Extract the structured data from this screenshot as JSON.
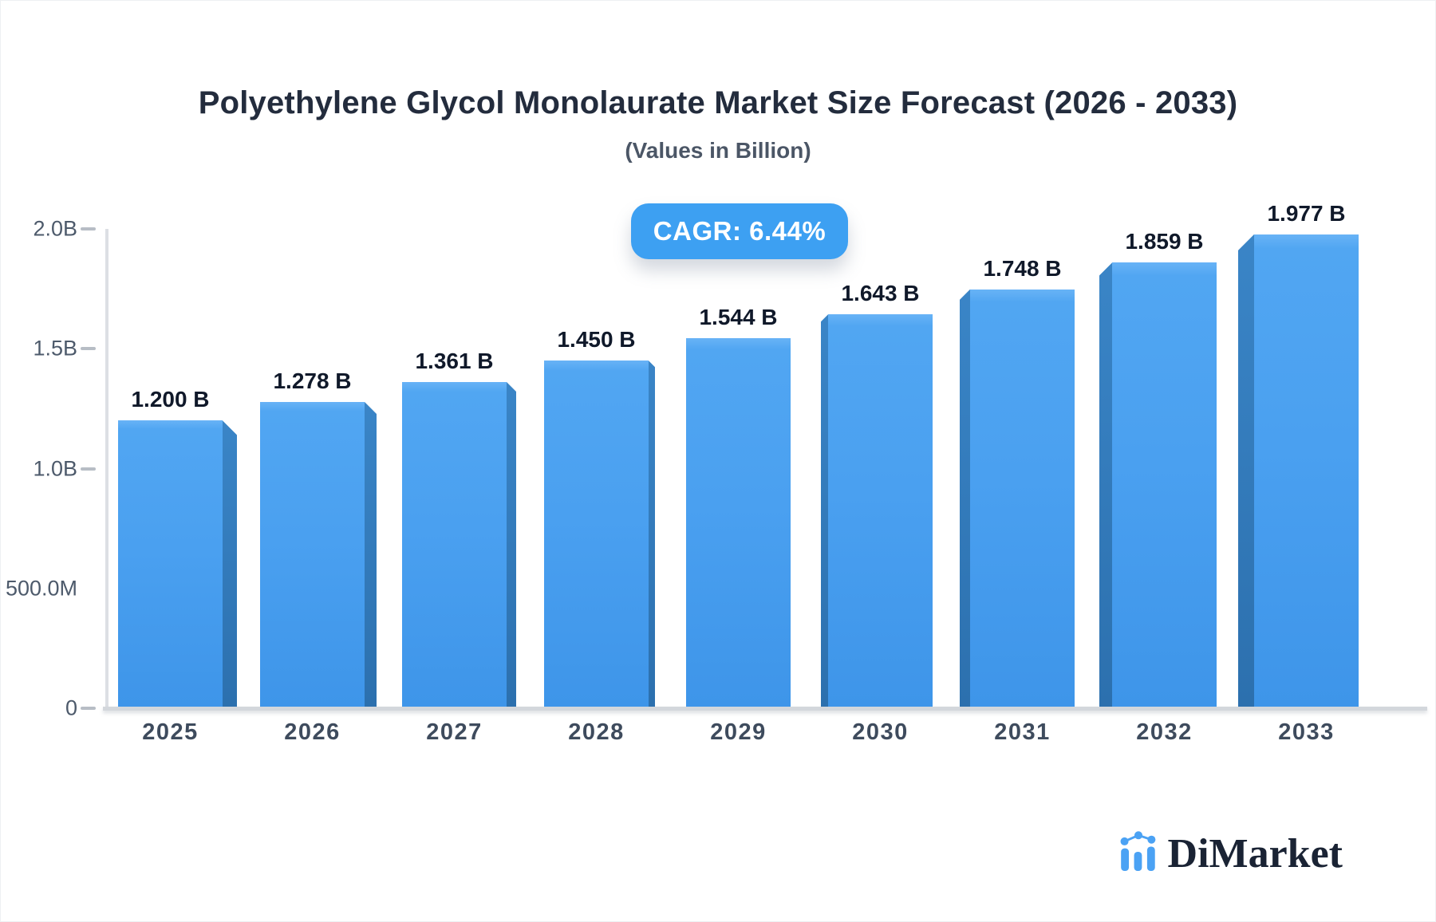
{
  "header": {
    "title": "Polyethylene Glycol Monolaurate Market Size Forecast (2026 - 2033)",
    "subtitle": "(Values in Billion)",
    "cagr_badge": "CAGR: 6.44%"
  },
  "chart_data": {
    "type": "bar",
    "title": "Polyethylene Glycol Monolaurate Market Size Forecast (2026 - 2033)",
    "subtitle": "(Values in Billion)",
    "cagr_text": "CAGR: 6.44%",
    "categories": [
      "2025",
      "2026",
      "2027",
      "2028",
      "2029",
      "2030",
      "2031",
      "2032",
      "2033"
    ],
    "values": [
      1.2,
      1.278,
      1.361,
      1.45,
      1.544,
      1.643,
      1.748,
      1.859,
      1.977
    ],
    "bar_labels": [
      "1.200 B",
      "1.278 B",
      "1.361 B",
      "1.450 B",
      "1.544 B",
      "1.643 B",
      "1.748 B",
      "1.859 B",
      "1.977 B"
    ],
    "unit": "B",
    "ylim": [
      0,
      2.0
    ],
    "y_ticks": [
      {
        "label": "2.0B",
        "value": 2.0,
        "dash": true
      },
      {
        "label": "1.5B",
        "value": 1.5,
        "dash": true
      },
      {
        "label": "1.0B",
        "value": 1.0,
        "dash": true
      },
      {
        "label": "500.0M",
        "value": 0.5,
        "dash": false
      },
      {
        "label": "0",
        "value": 0.0,
        "dash": true
      }
    ],
    "grid": false,
    "legend": "none",
    "bar_style": "3d-perspective",
    "colors": {
      "bar_face": "#47A0F0",
      "bar_face_top": "#68B3F6",
      "bar_face_bottom": "#3E95E9",
      "bar_side": "#2E77B9",
      "badge_bg": "#3DA0F2",
      "axis_line": "#D7DAE0",
      "tick_text": "#4D5A6B",
      "x_label_text": "#3E4B5D",
      "value_label_text": "#10192A",
      "title_text": "#232C3D",
      "brand_text": "#1A2334",
      "brand_icon_blue": "#4BA2F4"
    }
  },
  "footer": {
    "brand": "DiMarket",
    "logo_icon": "bar-chart-trend-icon"
  }
}
